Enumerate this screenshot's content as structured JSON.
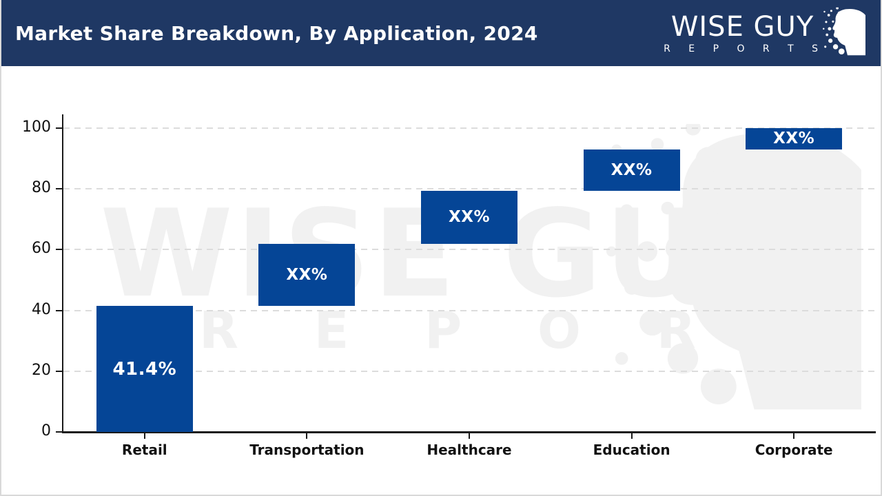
{
  "header": {
    "title": "Market Share Breakdown, By Application, 2024",
    "bg_color": "#1f3864",
    "logo": {
      "line1": "WISE GUY",
      "line2": "R E P O R T S"
    }
  },
  "watermark": {
    "line1": "WISE GUY",
    "line2": "R E P O R T S"
  },
  "chart_data": {
    "type": "bar",
    "subtype": "waterfall-floating-bars",
    "title": "Market Share Breakdown, By Application, 2024",
    "categories": [
      "Retail",
      "Transportation",
      "Healthcare",
      "Education",
      "Corporate"
    ],
    "segments": [
      {
        "category": "Retail",
        "start": 0,
        "end": 41.4,
        "label": "41.4%"
      },
      {
        "category": "Transportation",
        "start": 41.4,
        "end": 62.0,
        "label": "XX%"
      },
      {
        "category": "Healthcare",
        "start": 62.0,
        "end": 79.4,
        "label": "XX%"
      },
      {
        "category": "Education",
        "start": 79.4,
        "end": 93.0,
        "label": "XX%"
      },
      {
        "category": "Corporate",
        "start": 93.0,
        "end": 100.0,
        "label": "XX%"
      }
    ],
    "xlabel": "",
    "ylabel": "",
    "y_ticks": [
      0,
      20,
      40,
      60,
      80,
      100
    ],
    "ylim": [
      0,
      105
    ],
    "grid": "horizontal dashed",
    "gridline_color": "#dcdcdc",
    "bar_color": "#054596",
    "bar_label_color": "#ffffff",
    "axis_color": "#1a1a1a",
    "legend": "none"
  }
}
